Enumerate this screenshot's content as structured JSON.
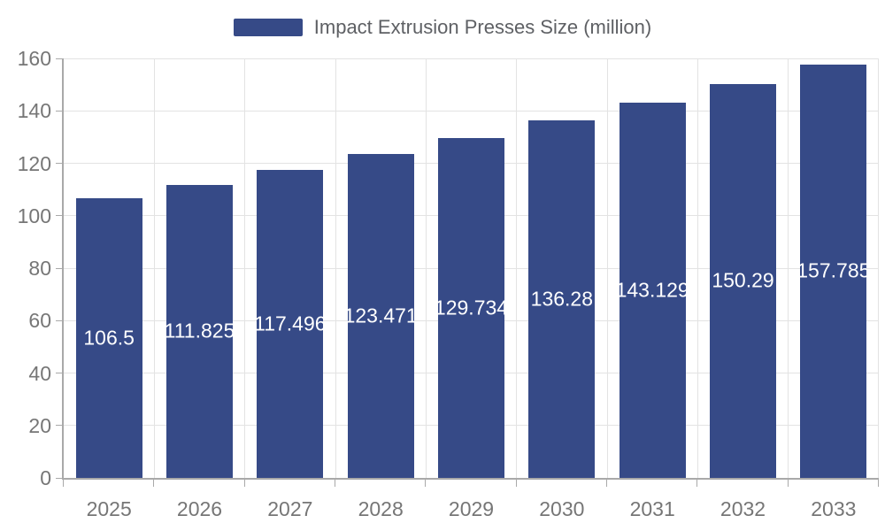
{
  "legend": {
    "label": "Impact Extrusion Presses Size (million)"
  },
  "chart_data": {
    "type": "bar",
    "title": "",
    "xlabel": "",
    "ylabel": "",
    "categories": [
      "2025",
      "2026",
      "2027",
      "2028",
      "2029",
      "2030",
      "2031",
      "2032",
      "2033"
    ],
    "values": [
      106.5,
      111.825,
      117.496,
      123.471,
      129.734,
      136.28,
      143.129,
      150.29,
      157.785
    ],
    "value_labels": [
      "106.5",
      "111.825",
      "117.496",
      "123.471",
      "129.734",
      "136.28",
      "143.129",
      "150.29",
      "157.785"
    ],
    "series": [
      {
        "name": "Impact Extrusion Presses Size (million)",
        "values": [
          106.5,
          111.825,
          117.496,
          123.471,
          129.734,
          136.28,
          143.129,
          150.29,
          157.785
        ]
      }
    ],
    "ylim": [
      0,
      160
    ],
    "yticks": [
      0,
      20,
      40,
      60,
      80,
      100,
      120,
      140,
      160
    ],
    "grid": true,
    "gridlines": "horizontal-and-vertical",
    "legend_position": "top-center",
    "bar_labels_position": "inside-center"
  },
  "style": {
    "bar_color": "#364A87",
    "grid_color": "#E3E3E3",
    "axis_line_color": "#A9A9A9",
    "axis_label_color": "#767676",
    "legend_text_color": "#5E6064",
    "bar_label_color": "#FFFFFF",
    "background": "#FFFFFF"
  }
}
